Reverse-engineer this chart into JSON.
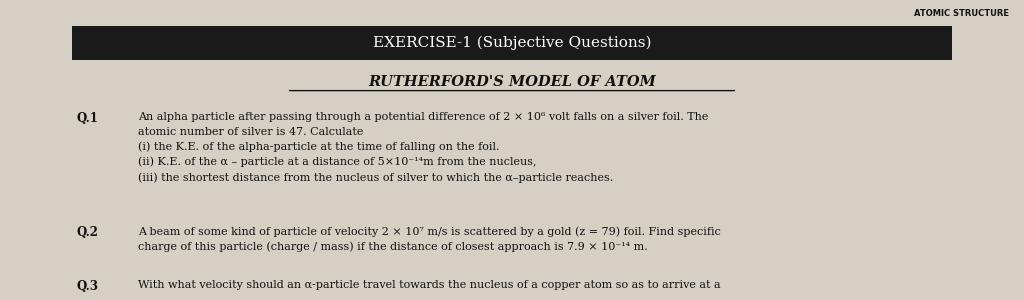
{
  "background_color": "#d6cfc4",
  "top_label": "ATOMIC STRUCTURE",
  "header_bg": "#1a1a1a",
  "header_text": "EXERCISE-1 (Subjective Questions)",
  "subheader": "RUTHERFORD'S MODEL OF ATOM",
  "q1_label": "Q.1",
  "q1_text": "An alpha particle after passing through a potential difference of 2 × 10⁶ volt falls on a silver foil. The\natomic number of silver is 47. Calculate\n(i) the K.E. of the alpha-particle at the time of falling on the foil.\n(ii) K.E. of the α – particle at a distance of 5×10⁻¹⁴m from the nucleus,\n(iii) the shortest distance from the nucleus of silver to which the α–particle reaches.",
  "q2_label": "Q.2",
  "q2_text": "A beam of some kind of particle of velocity 2 × 10⁷ m/s is scattered by a gold (z = 79) foil. Find specific\ncharge of this particle (charge / mass) if the distance of closest approach is 7.9 × 10⁻¹⁴ m.",
  "q3_label": "Q.3",
  "q3_text": "With what velocity should an α-particle travel towards the nucleus of a copper atom so as to arrive at a"
}
